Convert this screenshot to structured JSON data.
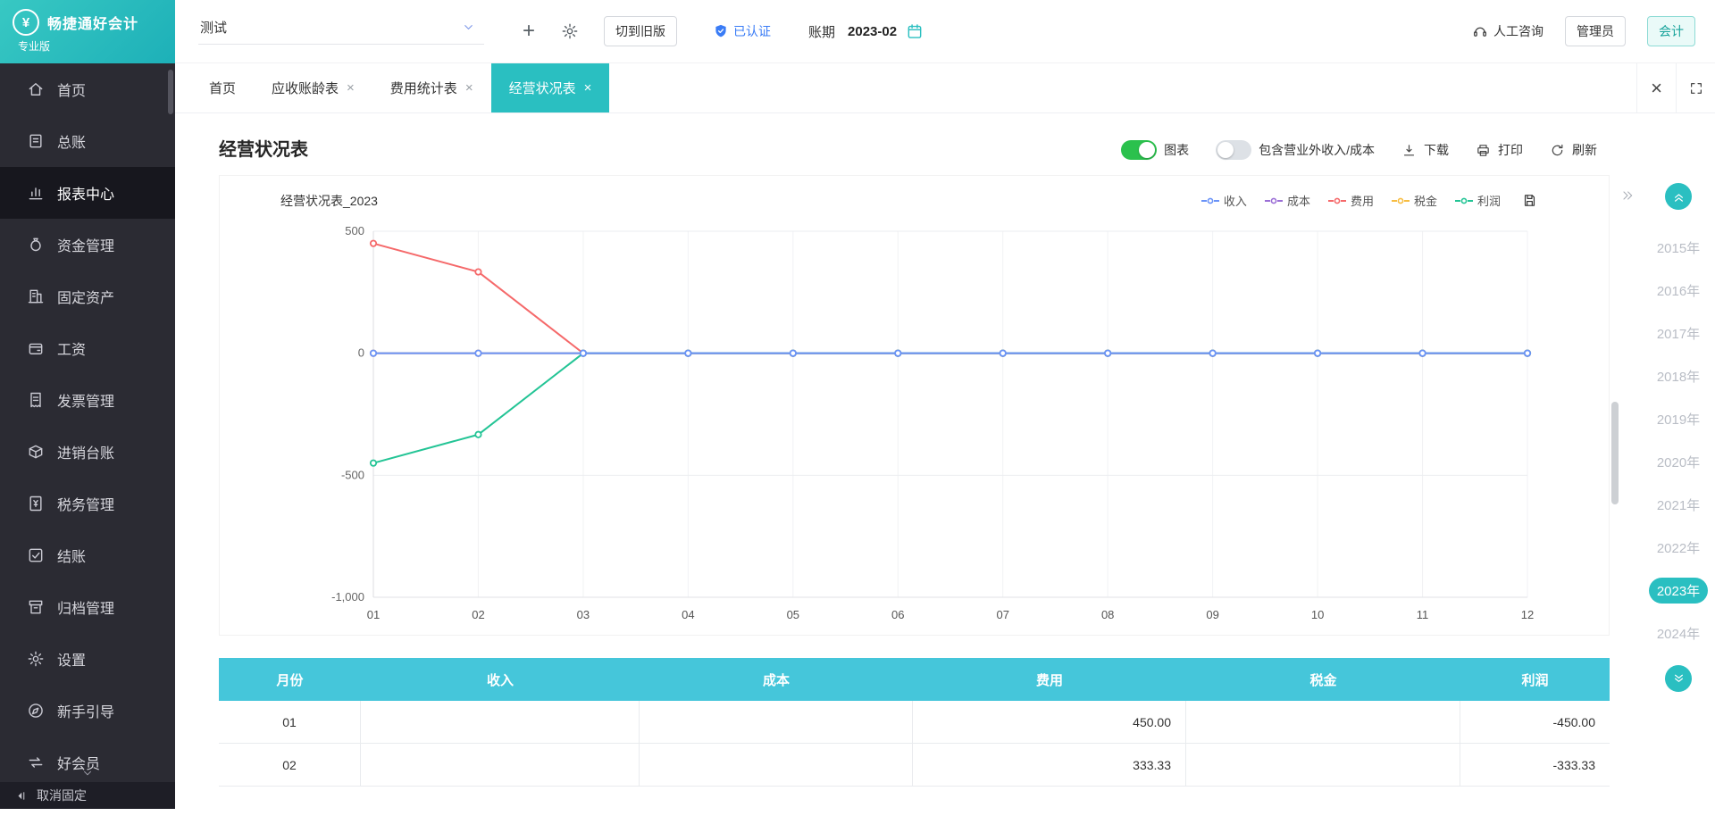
{
  "app": {
    "logo_title": "畅捷通好会计",
    "logo_subtitle": "专业版",
    "colors": {
      "teal": "#2abfc1",
      "sidebar_bg": "#2b2b33",
      "table_header": "#45c6da",
      "toggle_on": "#2bc14d",
      "certified_blue": "#3a7cf6"
    }
  },
  "sidebar": {
    "items": [
      {
        "label": "首页",
        "icon": "home-icon",
        "active": false
      },
      {
        "label": "总账",
        "icon": "ledger-icon",
        "active": false
      },
      {
        "label": "报表中心",
        "icon": "report-icon",
        "active": true
      },
      {
        "label": "资金管理",
        "icon": "fund-icon",
        "active": false
      },
      {
        "label": "固定资产",
        "icon": "asset-icon",
        "active": false
      },
      {
        "label": "工资",
        "icon": "salary-icon",
        "active": false
      },
      {
        "label": "发票管理",
        "icon": "invoice-icon",
        "active": false
      },
      {
        "label": "进销台账",
        "icon": "inventory-icon",
        "active": false
      },
      {
        "label": "税务管理",
        "icon": "tax-icon",
        "active": false
      },
      {
        "label": "结账",
        "icon": "checkout-icon",
        "active": false
      },
      {
        "label": "归档管理",
        "icon": "archive-icon",
        "active": false
      },
      {
        "label": "设置",
        "icon": "settings-icon",
        "active": false
      },
      {
        "label": "新手引导",
        "icon": "guide-icon",
        "active": false
      },
      {
        "label": "好会员",
        "icon": "switch-icon",
        "active": false
      }
    ],
    "collapse_hint": "取消固定"
  },
  "topbar": {
    "account_set": "测试",
    "switch_old_version": "切到旧版",
    "certified": "已认证",
    "period_label": "账期",
    "period_value": "2023-02",
    "support": "人工咨询",
    "admin": "管理员",
    "role": "会计"
  },
  "tabs": {
    "items": [
      {
        "label": "首页",
        "closable": false,
        "active": false
      },
      {
        "label": "应收账龄表",
        "closable": true,
        "active": false
      },
      {
        "label": "费用统计表",
        "closable": true,
        "active": false
      },
      {
        "label": "经营状况表",
        "closable": true,
        "active": true
      }
    ]
  },
  "page": {
    "title": "经营状况表",
    "toggle_chart_label": "图表",
    "toggle_chart_on": true,
    "toggle_nonop_label": "包含营业外收入/成本",
    "toggle_nonop_on": false,
    "download_label": "下载",
    "print_label": "打印",
    "refresh_label": "刷新"
  },
  "chart_data": {
    "type": "line",
    "title": "经营状况表_2023",
    "categories": [
      "01",
      "02",
      "03",
      "04",
      "05",
      "06",
      "07",
      "08",
      "09",
      "10",
      "11",
      "12"
    ],
    "series": [
      {
        "name": "收入",
        "color": "#6a93f8",
        "values": [
          0,
          0,
          0,
          0,
          0,
          0,
          0,
          0,
          0,
          0,
          0,
          0
        ]
      },
      {
        "name": "成本",
        "color": "#9b6fd6",
        "values": [
          0,
          0,
          0,
          0,
          0,
          0,
          0,
          0,
          0,
          0,
          0,
          0
        ]
      },
      {
        "name": "费用",
        "color": "#f5696a",
        "values": [
          450,
          333.33,
          0,
          0,
          0,
          0,
          0,
          0,
          0,
          0,
          0,
          0
        ]
      },
      {
        "name": "税金",
        "color": "#f7bd42",
        "values": [
          0,
          0,
          0,
          0,
          0,
          0,
          0,
          0,
          0,
          0,
          0,
          0
        ]
      },
      {
        "name": "利润",
        "color": "#23c495",
        "values": [
          -450,
          -333.33,
          0,
          0,
          0,
          0,
          0,
          0,
          0,
          0,
          0,
          0
        ]
      }
    ],
    "ylim": [
      -1000,
      500
    ],
    "yticks": [
      500,
      0,
      -500,
      -1000
    ],
    "ytick_labels": [
      "500",
      "0",
      "-500",
      "-1,000"
    ],
    "grid": true,
    "legend_position": "top-right"
  },
  "table": {
    "headers": [
      "月份",
      "收入",
      "成本",
      "费用",
      "税金",
      "利润"
    ],
    "rows": [
      [
        "01",
        "",
        "",
        "450.00",
        "",
        "-450.00"
      ],
      [
        "02",
        "",
        "",
        "333.33",
        "",
        "-333.33"
      ]
    ]
  },
  "year_rail": {
    "items": [
      "2015年",
      "2016年",
      "2017年",
      "2018年",
      "2019年",
      "2020年",
      "2021年",
      "2022年",
      "2023年",
      "2024年"
    ],
    "selected": "2023年"
  }
}
